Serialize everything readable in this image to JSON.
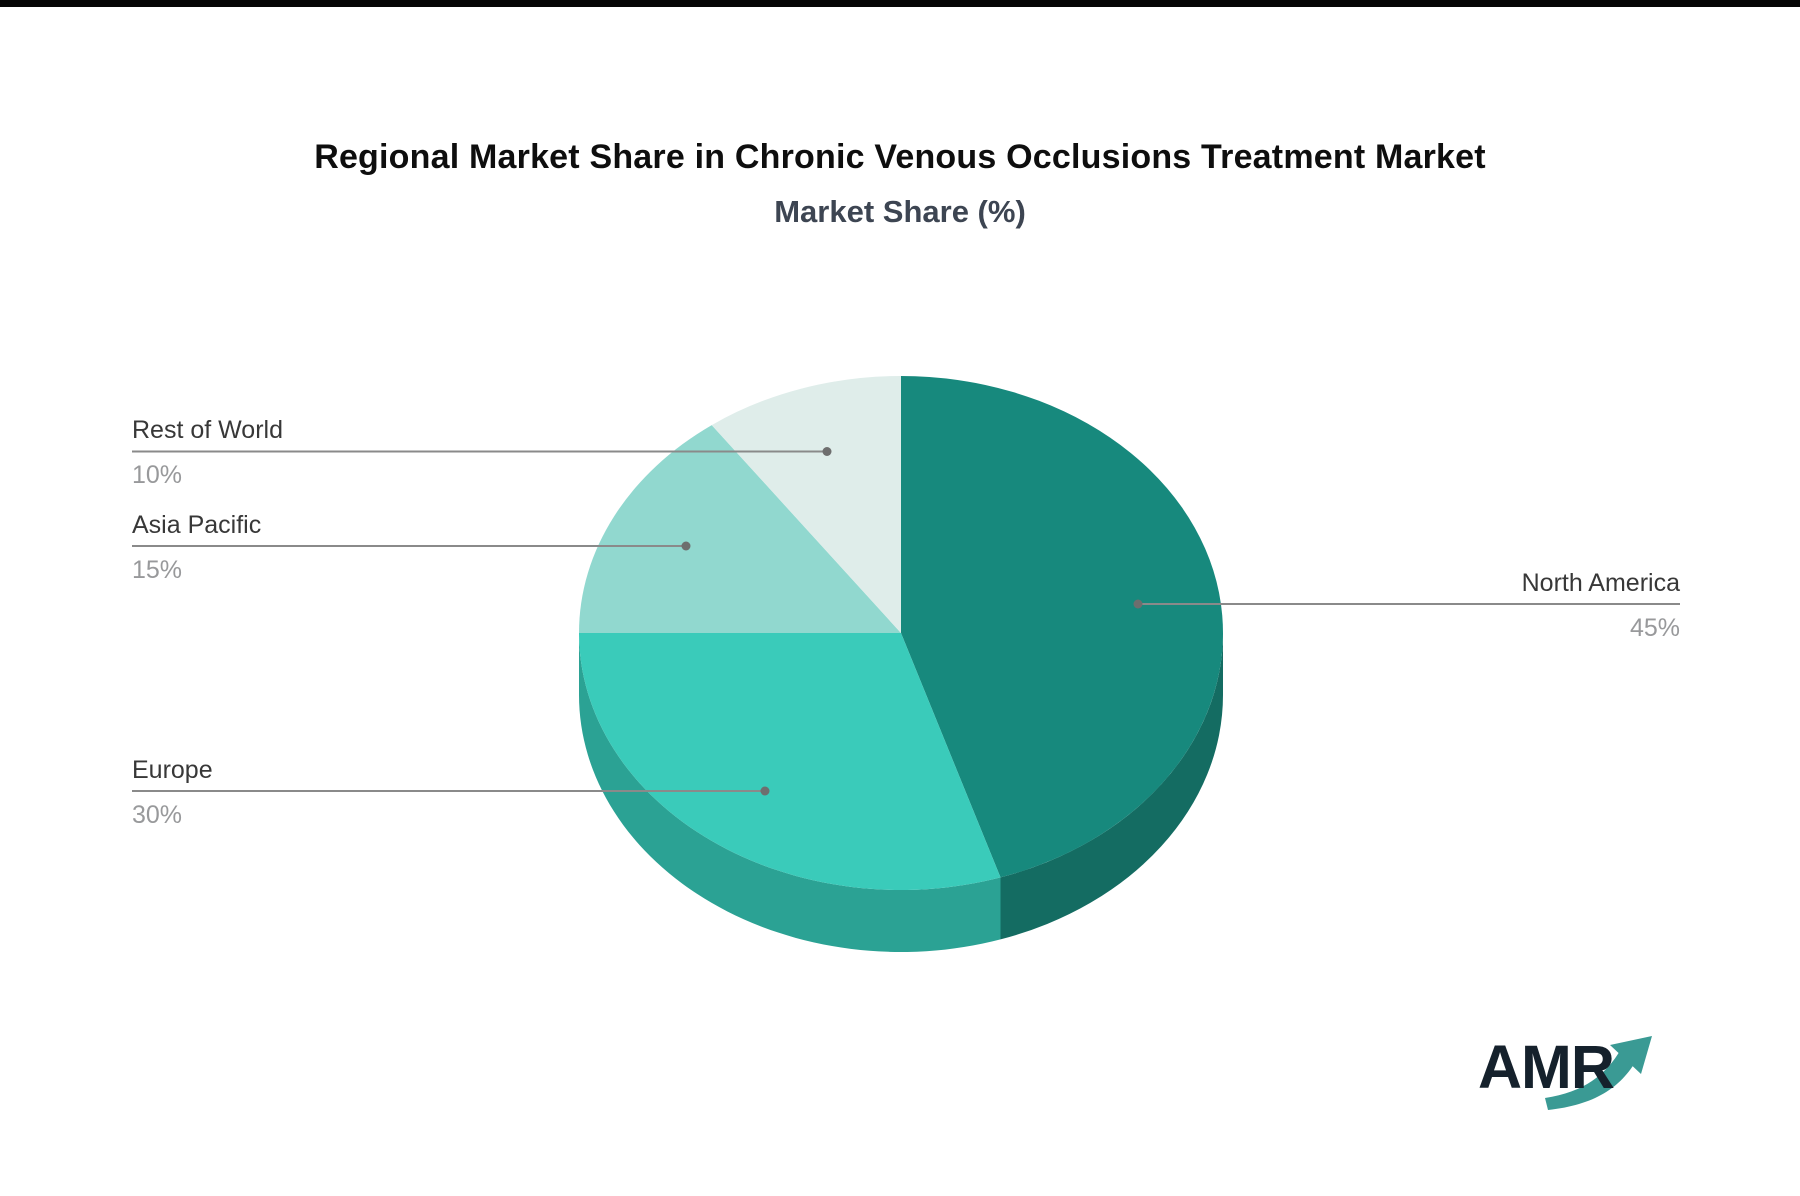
{
  "title": "Regional Market Share in Chronic Venous Occlusions Treatment Market",
  "subtitle": "Market Share (%)",
  "chart_data": {
    "type": "pie",
    "title": "Regional Market Share in Chronic Venous Occlusions Treatment Market",
    "subtitle": "Market Share (%)",
    "unit": "%",
    "style": "3d-pie",
    "start_angle_deg": 0,
    "direction": "clockwise",
    "legend_position": "callout-labels",
    "slices": [
      {
        "label": "North America",
        "value": 45,
        "display": "45%",
        "color": "#17897D",
        "side_color": "#146C62"
      },
      {
        "label": "Europe",
        "value": 30,
        "display": "30%",
        "color": "#3ACBBA",
        "side_color": "#2BA294"
      },
      {
        "label": "Asia Pacific",
        "value": 15,
        "display": "15%",
        "color": "#91D8CF",
        "side_color": "#6FB8AE"
      },
      {
        "label": "Rest of World",
        "value": 10,
        "display": "10%",
        "color": "#DFEDEA",
        "side_color": "#BCD9D4"
      }
    ]
  },
  "callout_colors": {
    "label_text": "#383838",
    "percent_text": "#98999B",
    "leader_line": "#8A8A8A",
    "leader_dot": "#6E6E6E"
  },
  "logo": {
    "text": "AMR",
    "icon": "growth-arrow-icon",
    "text_color": "#15212C",
    "arrow_color": "#3A9A94"
  }
}
